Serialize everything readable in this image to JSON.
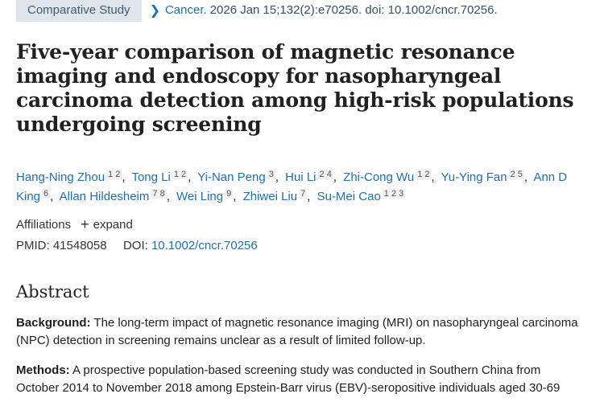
{
  "header": {
    "badge": "Comparative Study",
    "journal": "Cancer.",
    "citation": "2026 Jan 15;132(2):e70256. doi: 10.1002/cncr.70256."
  },
  "title": "Five-year comparison of magnetic resonance imaging and endoscopy for nasopharyngeal carcinoma detection among high-risk populations undergoing screening",
  "authors": [
    {
      "name": "Hang-Ning Zhou",
      "affs": "1 2"
    },
    {
      "name": "Tong Li",
      "affs": "1 2"
    },
    {
      "name": "Yi-Nan Peng",
      "affs": "3"
    },
    {
      "name": "Hui Li",
      "affs": "2 4"
    },
    {
      "name": "Zhi-Cong Wu",
      "affs": "1 2"
    },
    {
      "name": "Yu-Ying Fan",
      "affs": "2 5"
    },
    {
      "name": "Ann D King",
      "affs": "6"
    },
    {
      "name": "Allan Hildesheim",
      "affs": "7 8"
    },
    {
      "name": "Wei Ling",
      "affs": "9"
    },
    {
      "name": "Zhiwei Liu",
      "affs": "7"
    },
    {
      "name": "Su-Mei Cao",
      "affs": "1 2 3"
    }
  ],
  "affiliations": {
    "label": "Affiliations",
    "expand_label": "expand",
    "expand_icon": "plus-icon"
  },
  "ids": {
    "pmid_label": "PMID:",
    "pmid": "41548058",
    "doi_label": "DOI:",
    "doi": "10.1002/cncr.70256"
  },
  "abstract": {
    "heading": "Abstract",
    "background_label": "Background:",
    "background_text": "The long-term impact of magnetic resonance imaging (MRI) on nasopharyngeal carcinoma (NPC) detection in screening remains unclear as a result of limited follow-up.",
    "methods_label": "Methods:",
    "methods_text": "A prospective population-based screening study was conducted in Southern China from October 2014 to November 2018 among Epstein-Barr virus (EBV)-seropositive individuals aged 30-69"
  },
  "colors": {
    "link": "#1e6fb4",
    "badge_bg": "#dfe5eb",
    "text": "#212121"
  }
}
